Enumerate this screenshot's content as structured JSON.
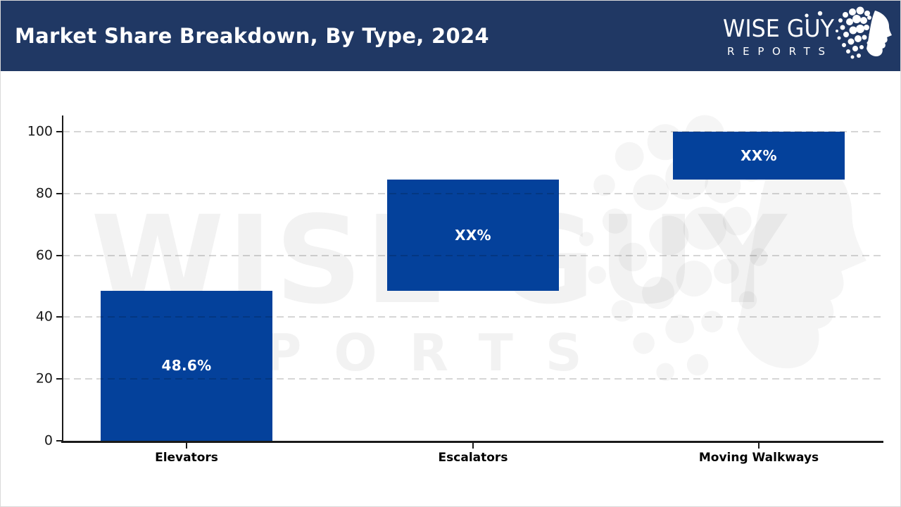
{
  "header": {
    "title": "Market Share Breakdown, By Type, 2024",
    "logo": {
      "line1": "WISE GUY",
      "line2": "REPORTS"
    }
  },
  "watermark": {
    "line1": "WISE GUY",
    "line2": "REPORTS"
  },
  "chart_data": {
    "type": "bar",
    "subtype": "floating-waterfall",
    "title": "Market Share Breakdown, By Type, 2024",
    "xlabel": "",
    "ylabel": "",
    "ylim": [
      0,
      100
    ],
    "yticks": [
      0,
      20,
      40,
      60,
      80,
      100
    ],
    "grid": "dashed-horizontal",
    "legend": "none",
    "categories": [
      "Elevators",
      "Escalators",
      "Moving Walkways"
    ],
    "bars": [
      {
        "category": "Elevators",
        "start": 0,
        "end": 48.6,
        "label": "48.6%"
      },
      {
        "category": "Escalators",
        "start": 48.6,
        "end": 84.6,
        "label": "XX%"
      },
      {
        "category": "Moving Walkways",
        "start": 84.6,
        "end": 100,
        "label": "XX%"
      }
    ]
  },
  "colors": {
    "header_bg": "#203864",
    "bar": "#04419b",
    "bar_label": "#ffffff",
    "axis": "#1a1a1a",
    "grid": "rgba(0,0,0,0.16)",
    "watermark": "rgba(0,0,0,0.05)"
  }
}
